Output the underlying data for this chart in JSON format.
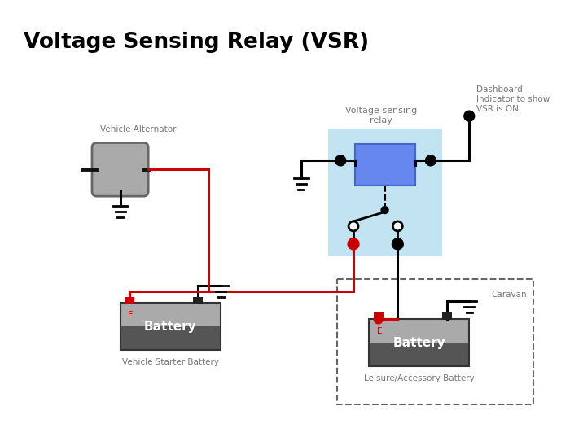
{
  "title": "Voltage Sensing Relay (VSR)",
  "title_fontsize": 19,
  "title_fontweight": "bold",
  "bg_color": "#ffffff",
  "text_color": "#777777",
  "wire_black": "#111111",
  "wire_red": "#cc0000",
  "alternator_fill": "#aaaaaa",
  "alternator_edge": "#666666",
  "vsr_fill": "#b8dff0",
  "coil_fill": "#6688ee",
  "coil_edge": "#4466cc",
  "caravan_edge": "#666666",
  "battery_red": "#cc0000",
  "battery_edge": "#333333",
  "label_alt": "Vehicle Alternator",
  "label_vsr": "Voltage sensing\nrelay",
  "label_dash": "Dashboard\nIndicator to show\nVSR is ON",
  "label_vbat": "Vehicle Starter Battery",
  "label_lbat": "Leisure/Accessory Battery",
  "label_caravan": "Caravan",
  "label_e": "E",
  "label_battery": "Battery"
}
